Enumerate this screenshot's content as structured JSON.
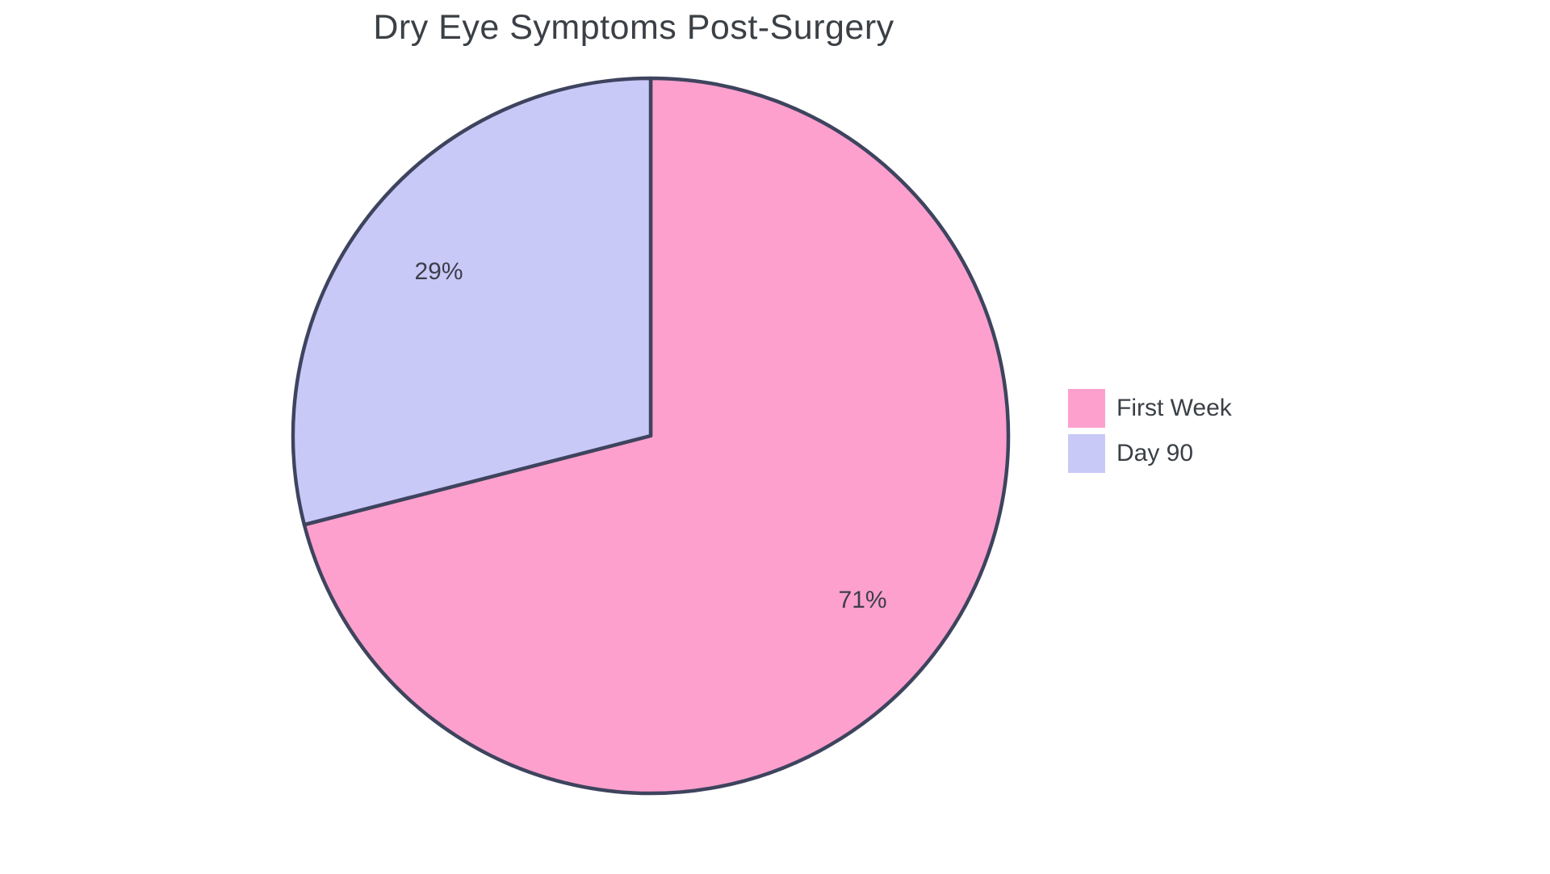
{
  "chart_data": {
    "type": "pie",
    "title": "Dry Eye Symptoms Post-Surgery",
    "labels": [
      "First Week",
      "Day 90"
    ],
    "values": [
      71,
      29
    ],
    "slice_labels": [
      "71%",
      "29%"
    ],
    "colors": [
      "#FDA0CD",
      "#C9C9F8"
    ],
    "stroke_color": "#3E445E",
    "stroke_width": 4.5,
    "start_angle_deg": 0,
    "direction": "clockwise",
    "slice_label_color": "#3A3F49",
    "title_color": "#3B4046",
    "legend": {
      "position": "right"
    },
    "background": "#FFFFFF",
    "grid": false
  }
}
